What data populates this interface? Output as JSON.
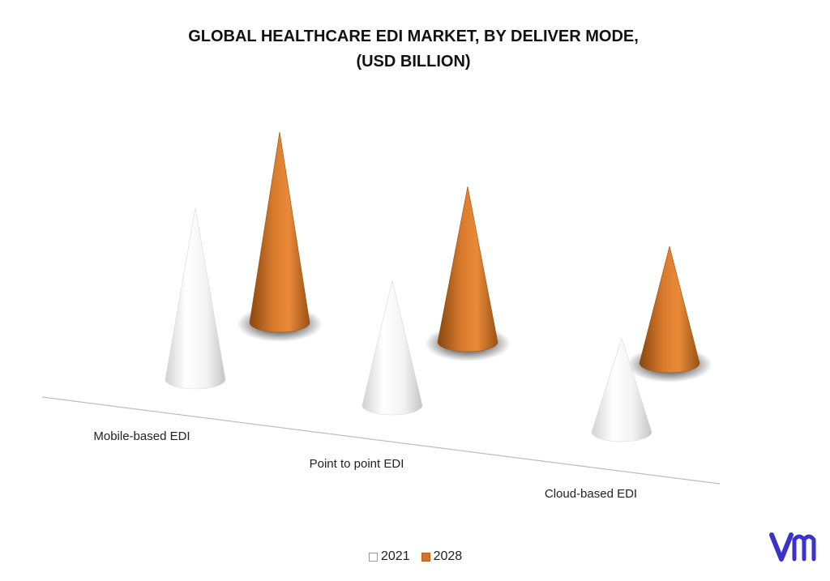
{
  "chart_data": {
    "type": "bar",
    "title_lines": [
      "GLOBAL HEALTHCARE EDI MARKET, BY DELIVER MODE,",
      "(USD BILLION)"
    ],
    "categories": [
      "Mobile-based EDI",
      "Point to point EDI",
      "Cloud-based EDI"
    ],
    "series": [
      {
        "name": "2021",
        "values": [
          2.2,
          1.6,
          1.2
        ],
        "color": "#ffffff"
      },
      {
        "name": "2028",
        "values": [
          2.45,
          2.0,
          1.5
        ],
        "color": "#d0762a"
      }
    ],
    "mark_shape": "cone",
    "grid": false,
    "legend_position": "bottom"
  },
  "brand": {
    "logo_icon": "vmr-logo-icon",
    "logo_color": "#3b32c9"
  }
}
